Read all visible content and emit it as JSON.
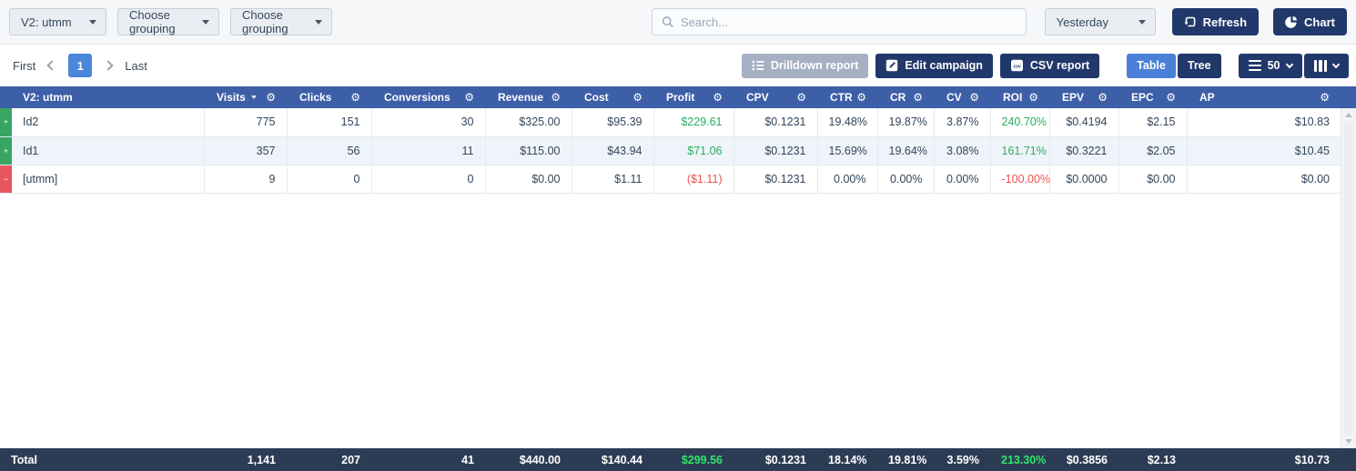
{
  "toolbar": {
    "campaign_select": "V2: utmm",
    "grouping1": "Choose grouping",
    "grouping2": "Choose grouping",
    "search_placeholder": "Search...",
    "date_range": "Yesterday",
    "refresh_label": "Refresh",
    "chart_label": "Chart"
  },
  "pagination": {
    "first": "First",
    "page": "1",
    "last": "Last"
  },
  "actions": {
    "drilldown": "Drilldown report",
    "edit": "Edit campaign",
    "csv": "CSV report",
    "table": "Table",
    "tree": "Tree",
    "page_size": "50"
  },
  "table": {
    "name_header": "V2: utmm",
    "sorted_column": "Visits",
    "sort_direction": "desc",
    "columns": [
      "Visits",
      "Clicks",
      "Conversions",
      "Revenue",
      "Cost",
      "Profit",
      "CPV",
      "CTR",
      "CR",
      "CV",
      "ROI",
      "EPV",
      "EPC",
      "AP"
    ],
    "colored_columns": [
      5,
      10
    ],
    "rows": [
      {
        "name": "Id2",
        "indicator": "plus",
        "values": [
          "775",
          "151",
          "30",
          "$325.00",
          "$95.39",
          "$229.61",
          "$0.1231",
          "19.48%",
          "19.87%",
          "3.87%",
          "240.70%",
          "$0.4194",
          "$2.15",
          "$10.83"
        ]
      },
      {
        "name": "Id1",
        "indicator": "plus",
        "values": [
          "357",
          "56",
          "11",
          "$115.00",
          "$43.94",
          "$71.06",
          "$0.1231",
          "15.69%",
          "19.64%",
          "3.08%",
          "161.71%",
          "$0.3221",
          "$2.05",
          "$10.45"
        ]
      },
      {
        "name": "[utmm]",
        "indicator": "minus",
        "values": [
          "9",
          "0",
          "0",
          "$0.00",
          "$1.11",
          "($1.11)",
          "$0.1231",
          "0.00%",
          "0.00%",
          "0.00%",
          "-100.00%",
          "$0.0000",
          "$0.00",
          "$0.00"
        ]
      }
    ],
    "total": {
      "label": "Total",
      "values": [
        "1,141",
        "207",
        "41",
        "$440.00",
        "$140.44",
        "$299.56",
        "$0.1231",
        "18.14%",
        "19.81%",
        "3.59%",
        "213.30%",
        "$0.3856",
        "$2.13",
        "$10.73"
      ]
    }
  },
  "colors": {
    "header_blue": "#3d5fa8",
    "navy_button": "#21386b",
    "active_blue": "#4a80d8",
    "disabled_button": "#a6b0c3",
    "total_bar": "#2d3c55",
    "positive": "#27ae60",
    "negative": "#ef5350",
    "total_positive": "#2ee56a",
    "indicator_green": "#38a662",
    "indicator_red": "#e9555d"
  },
  "icons": {
    "search": "search-icon",
    "refresh": "refresh-icon",
    "chart": "pie-chart-icon",
    "drilldown": "list-icon",
    "edit": "edit-icon",
    "csv": "csv-file-icon",
    "rows": "hamburger-icon",
    "columns": "columns-icon",
    "gear": "gear-icon"
  }
}
